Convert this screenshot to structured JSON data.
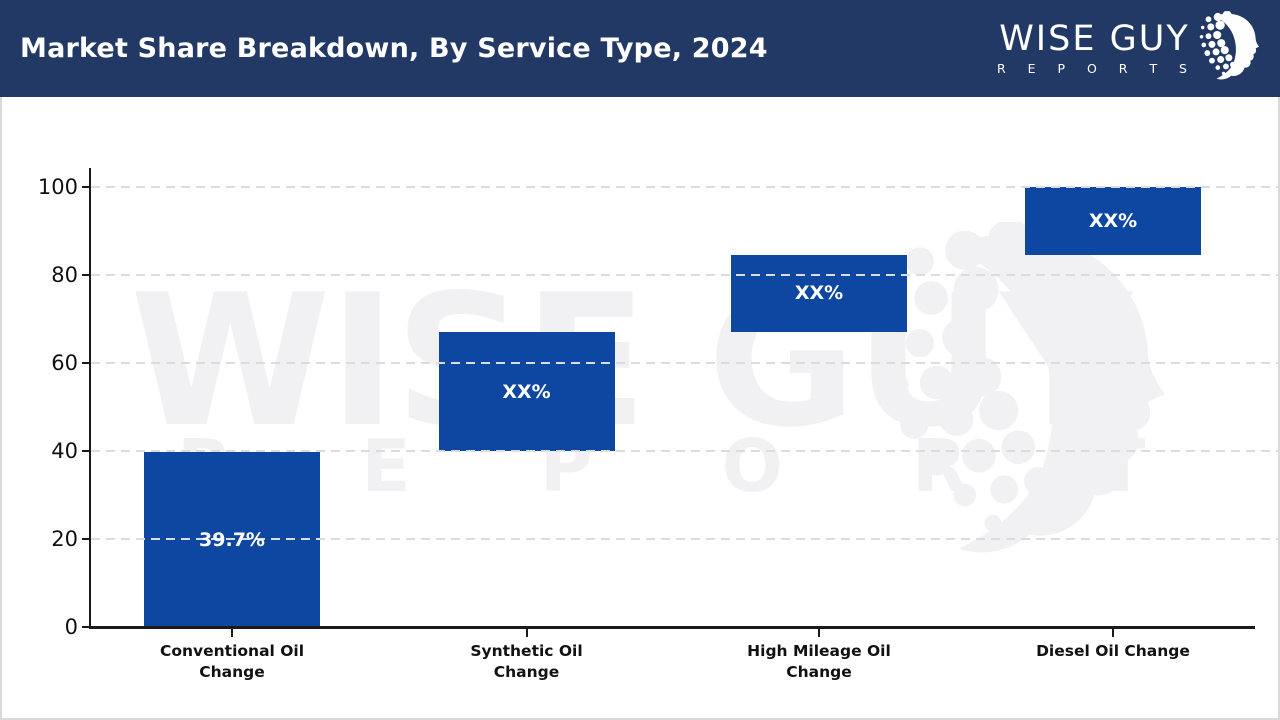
{
  "header": {
    "title": "Market Share Breakdown, By Service Type, 2024",
    "logo": {
      "line1": "WISE GUY",
      "line2": "R E P O R T S"
    }
  },
  "watermark": {
    "line1": "WISE GUY",
    "line2": "R E P O R T S"
  },
  "colors": {
    "header_bg": "#223966",
    "bar": "#0d47a1",
    "bar_label": "#ffffff",
    "watermark": "#f1f1f3",
    "gridline": "#dcdcdc",
    "axis": "#1a1a1a",
    "tick_text": "#111111",
    "title_text": "#ffffff"
  },
  "chart_data": {
    "type": "bar",
    "subtype": "floating-segment-bars",
    "title": "Market Share Breakdown, By Service Type, 2024",
    "categories": [
      "Conventional Oil Change",
      "Synthetic Oil Change",
      "High Mileage Oil Change",
      "Diesel Oil Change"
    ],
    "category_lines": [
      [
        "Conventional Oil",
        "Change"
      ],
      [
        "Synthetic Oil",
        "Change"
      ],
      [
        "High Mileage Oil",
        "Change"
      ],
      [
        "Diesel Oil Change"
      ]
    ],
    "segments": [
      {
        "category": "Conventional Oil Change",
        "start": 0,
        "end": 39.7,
        "label": "39.7%"
      },
      {
        "category": "Synthetic Oil Change",
        "start": 40,
        "end": 67,
        "label": "XX%"
      },
      {
        "category": "High Mileage Oil Change",
        "start": 67,
        "end": 84.6,
        "label": "XX%"
      },
      {
        "category": "Diesel Oil Change",
        "start": 84.6,
        "end": 100,
        "label": "XX%"
      }
    ],
    "xlabel": "",
    "ylabel": "",
    "ylim": [
      0,
      100
    ],
    "yticks": [
      0,
      20,
      40,
      60,
      80,
      100
    ],
    "grid": "horizontal-dashed",
    "legend": null
  }
}
